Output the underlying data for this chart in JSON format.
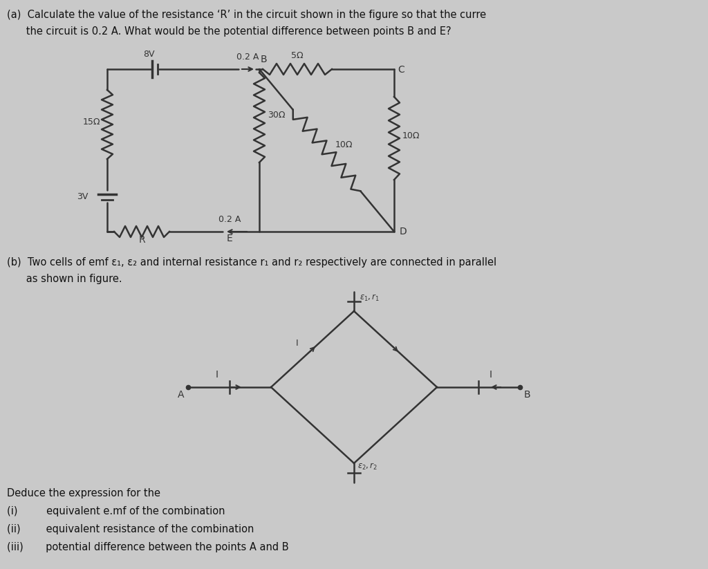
{
  "bg_color": "#c9c9c9",
  "title_a": "(a)  Calculate the value of the resistance ‘R’ in the circuit shown in the figure so that the curre",
  "title_a2": "      the circuit is 0.2 A. What would be the potential difference between points B and E?",
  "title_b": "(b)  Two cells of emf ε₁, ε₂ and internal resistance r₁ and r₂ respectively are connected in parallel",
  "title_b2": "      as shown in figure.",
  "deduce": "Deduce the expression for the",
  "item_i": "(i)         equivalent e.mf of the combination",
  "item_ii": "(ii)        equivalent resistance of the combination",
  "item_iii": "(iii)       potential difference between the points A and B"
}
